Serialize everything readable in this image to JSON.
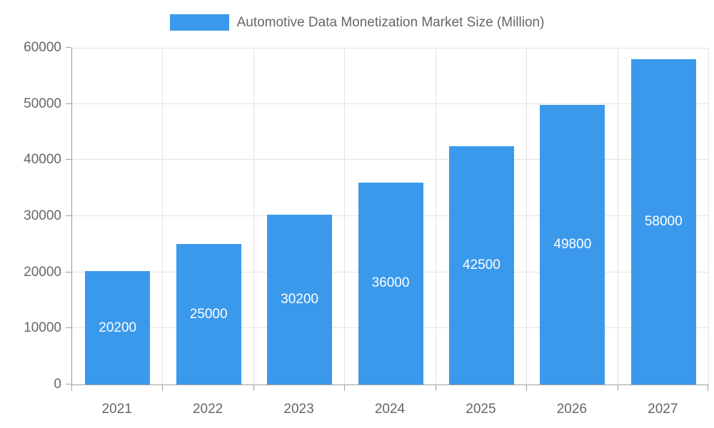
{
  "chart_data": {
    "type": "bar",
    "title": "Automotive Data Monetization Market Size (Million)",
    "categories": [
      "2021",
      "2022",
      "2023",
      "2024",
      "2025",
      "2026",
      "2027"
    ],
    "values": [
      20200,
      25000,
      30200,
      36000,
      42500,
      49800,
      58000
    ],
    "value_labels": [
      "20200",
      "25000",
      "30200",
      "36000",
      "42500",
      "49800",
      "58000"
    ],
    "xlabel": "",
    "ylabel": "",
    "ylim": [
      0,
      60000
    ],
    "yticks": [
      0,
      10000,
      20000,
      30000,
      40000,
      50000,
      60000
    ],
    "ytick_labels": [
      "0",
      "10000",
      "20000",
      "30000",
      "40000",
      "50000",
      "60000"
    ],
    "grid": true,
    "legend_position": "top-center",
    "colors": {
      "bar": "#3B99EC",
      "value_label": "#ffffff",
      "axis": "#9e9e9e",
      "grid": "#e2e2e2",
      "tick_label": "#666666",
      "title": "#666666",
      "background": "#ffffff"
    }
  }
}
